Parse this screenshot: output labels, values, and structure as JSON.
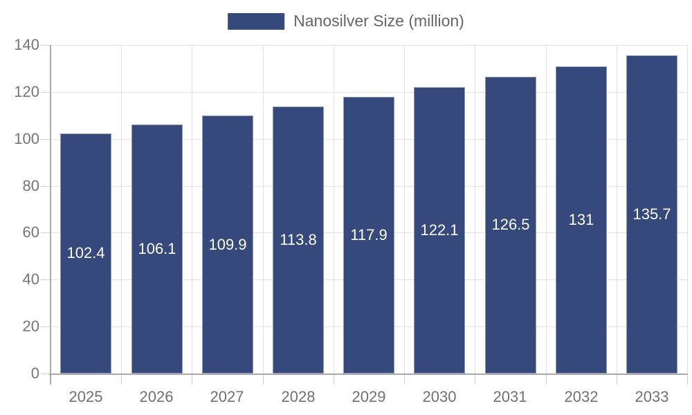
{
  "legend": {
    "label": "Nanosilver Size (million)"
  },
  "chart_data": {
    "type": "bar",
    "title": "",
    "xlabel": "",
    "ylabel": "",
    "categories": [
      "2025",
      "2026",
      "2027",
      "2028",
      "2029",
      "2030",
      "2031",
      "2032",
      "2033"
    ],
    "series": [
      {
        "name": "Nanosilver Size (million)",
        "values": [
          102.4,
          106.1,
          109.9,
          113.8,
          117.9,
          122.1,
          126.5,
          131,
          135.7
        ]
      }
    ],
    "ylim": [
      0,
      140
    ],
    "yticks": [
      0,
      20,
      40,
      60,
      80,
      100,
      120,
      140
    ],
    "grid": true,
    "legend_position": "top-center",
    "value_labels": "inside-middle"
  },
  "colors": {
    "bar_fill": "#36497d",
    "value_label": "#ffffff",
    "axis_line": "#a9a9a9",
    "gridline": "#e2e2e2",
    "tick_mark": "#cfcfcf",
    "ytick_text": "#757575",
    "xtick_text": "#707070",
    "legend_text": "#666666",
    "background": "#ffffff"
  }
}
